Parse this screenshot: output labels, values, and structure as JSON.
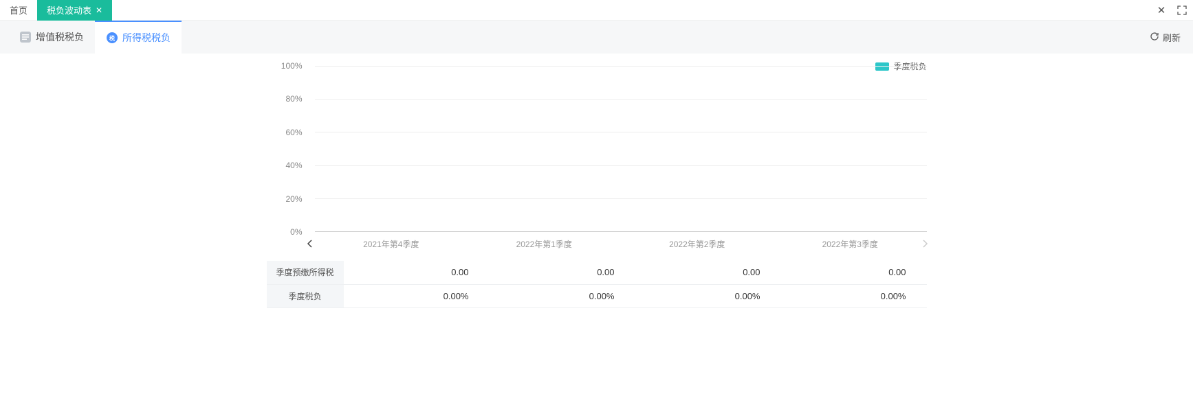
{
  "topTabs": {
    "home": "首页",
    "active": {
      "label": "税负波动表"
    }
  },
  "subTabs": {
    "vat": "增值税税负",
    "income": "所得税税负"
  },
  "actions": {
    "refresh": "刷新"
  },
  "chart": {
    "type": "bar",
    "legend_label": "季度税负",
    "legend_color": "#2ec7c9",
    "categories": [
      "2021年第4季度",
      "2022年第1季度",
      "2022年第2季度",
      "2022年第3季度"
    ],
    "values": [
      0,
      0,
      0,
      0
    ],
    "y_ticks": [
      "0%",
      "20%",
      "40%",
      "60%",
      "80%",
      "100%"
    ],
    "ylim": [
      0,
      100
    ],
    "grid_color": "#eeeeee",
    "axis_color": "#cccccc",
    "label_color": "#888888",
    "background_color": "#ffffff"
  },
  "table": {
    "rows": [
      {
        "header": "季度预缴所得税",
        "cells": [
          "0.00",
          "0.00",
          "0.00",
          "0.00"
        ]
      },
      {
        "header": "季度税负",
        "cells": [
          "0.00%",
          "0.00%",
          "0.00%",
          "0.00%"
        ]
      }
    ]
  }
}
